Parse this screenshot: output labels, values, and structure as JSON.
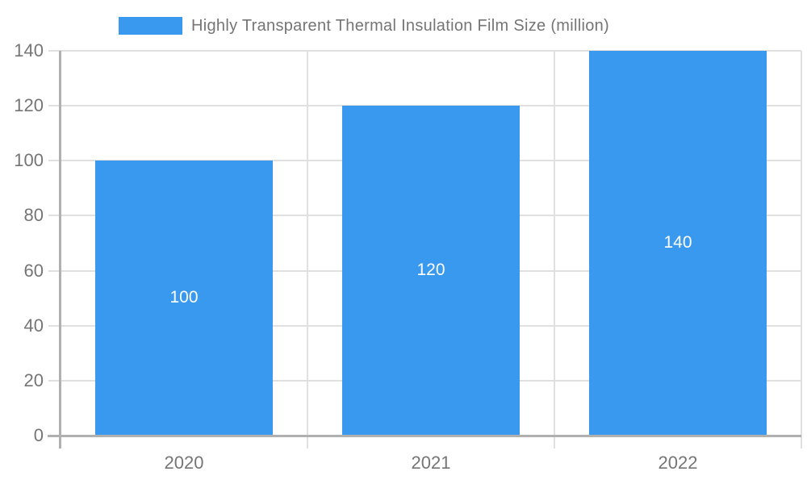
{
  "chart_data": {
    "type": "bar",
    "title": "Highly Transparent Thermal Insulation Film Size (million)",
    "categories": [
      "2020",
      "2021",
      "2022"
    ],
    "values": [
      100,
      120,
      140
    ],
    "data_labels": [
      "100",
      "120",
      "140"
    ],
    "yticks": [
      "0",
      "20",
      "40",
      "60",
      "80",
      "100",
      "120",
      "140"
    ],
    "ylim": [
      0,
      140
    ],
    "xlabel": "",
    "ylabel": "",
    "grid": true,
    "legend_position": "top"
  },
  "legend": {
    "label": "Highly Transparent Thermal Insulation Film Size (million)",
    "swatch_color": "#3999EF"
  },
  "colors": {
    "bar": "#3999EF",
    "axis_line": "#b0b0b0",
    "gridline": "#e0e0e0",
    "tick_label": "#757575",
    "bar_label": "#ffffff",
    "background": "#ffffff"
  }
}
